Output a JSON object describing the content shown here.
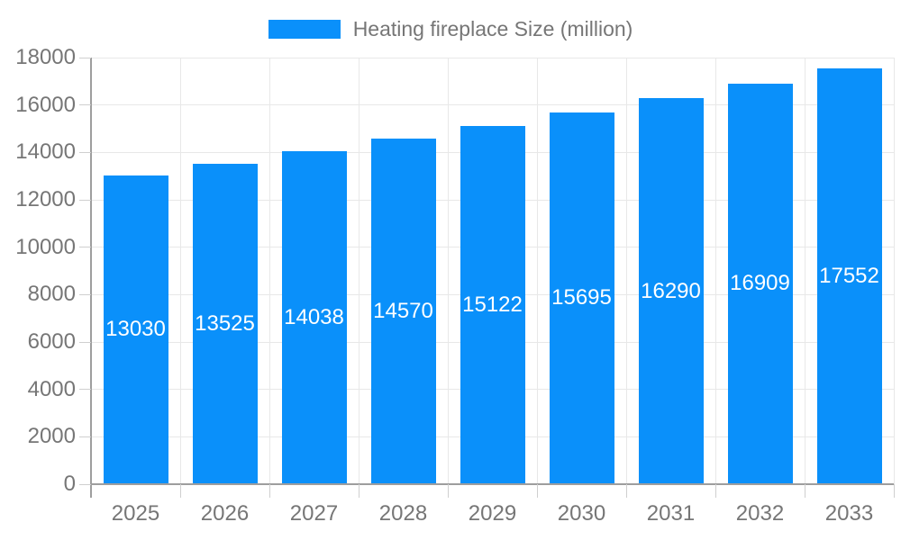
{
  "legend": {
    "label": "Heating fireplace Size (million)"
  },
  "chart_data": {
    "type": "bar",
    "title": "Heating fireplace Size (million)",
    "series_name": "Heating fireplace Size (million)",
    "categories": [
      "2025",
      "2026",
      "2027",
      "2028",
      "2029",
      "2030",
      "2031",
      "2032",
      "2033"
    ],
    "values": [
      13030,
      13525,
      14038,
      14570,
      15122,
      15695,
      16290,
      16909,
      17552
    ],
    "xlabel": "",
    "ylabel": "",
    "ylim": [
      0,
      18000
    ],
    "yticks": [
      0,
      2000,
      4000,
      6000,
      8000,
      10000,
      12000,
      14000,
      16000,
      18000
    ],
    "grid": true,
    "legend_position": "top-center",
    "bar_labels_inside": true,
    "colors": {
      "bar": "#0a90fa",
      "bar_label": "#ffffff",
      "axis_text": "#767676",
      "grid": "#e8e8e8",
      "axis_line": "#9e9e9e",
      "tick": "#cfcfcf",
      "background": "#ffffff"
    }
  }
}
